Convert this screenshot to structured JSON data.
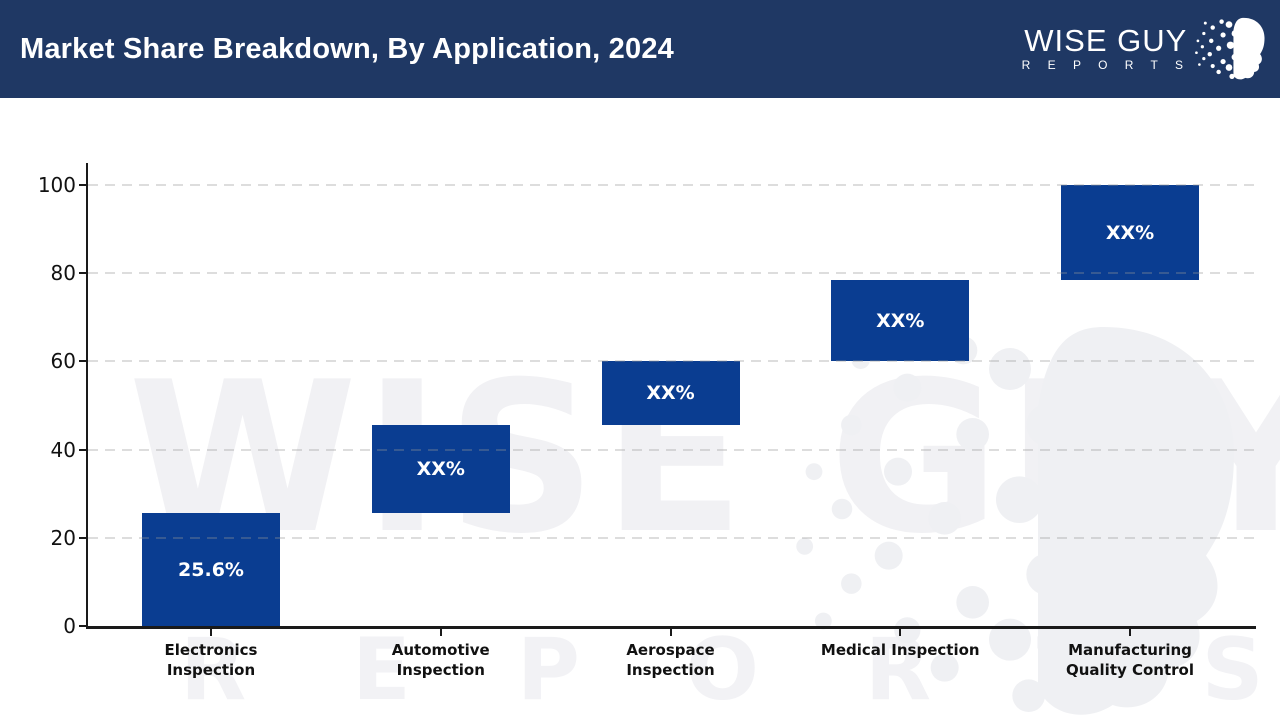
{
  "header": {
    "title": "Market Share Breakdown, By Application, 2024",
    "logo": {
      "name": "WISE GUY",
      "sub": "R E P O R T S"
    }
  },
  "watermark": {
    "line1": "WISE GUY",
    "line2": "R E P O R T S"
  },
  "chart_data": {
    "type": "bar",
    "subtype": "waterfall",
    "title": "Market Share Breakdown, By Application, 2024",
    "categories": [
      "Electronics Inspection",
      "Automotive Inspection",
      "Aerospace Inspection",
      "Medical Inspection",
      "Manufacturing Quality Control"
    ],
    "category_lines": [
      [
        "Electronics",
        "Inspection"
      ],
      [
        "Automotive",
        "Inspection"
      ],
      [
        "Aerospace",
        "Inspection"
      ],
      [
        "Medical Inspection"
      ],
      [
        "Manufacturing",
        "Quality Control"
      ]
    ],
    "segments": [
      {
        "category": "Electronics Inspection",
        "start": 0,
        "end": 25.6,
        "label": "25.6%"
      },
      {
        "category": "Automotive Inspection",
        "start": 25.6,
        "end": 45.5,
        "label": "XX%"
      },
      {
        "category": "Aerospace Inspection",
        "start": 45.5,
        "end": 60.0,
        "label": "XX%"
      },
      {
        "category": "Medical Inspection",
        "start": 60.0,
        "end": 78.4,
        "label": "XX%"
      },
      {
        "category": "Manufacturing Quality Control",
        "start": 78.4,
        "end": 100.0,
        "label": "XX%"
      }
    ],
    "ylim": [
      0,
      100
    ],
    "yticks": [
      0,
      20,
      40,
      60,
      80,
      100
    ],
    "grid": "dashed horizontal gridlines",
    "legend": "none",
    "colors": {
      "bar": "#0a3d91",
      "bar_label": "#ffffff",
      "header_bg": "#1f3864",
      "header_text": "#ffffff",
      "axis": "#1a1a1a",
      "gridline": "#e0e0e0",
      "watermark": "#f1f1f4"
    }
  }
}
